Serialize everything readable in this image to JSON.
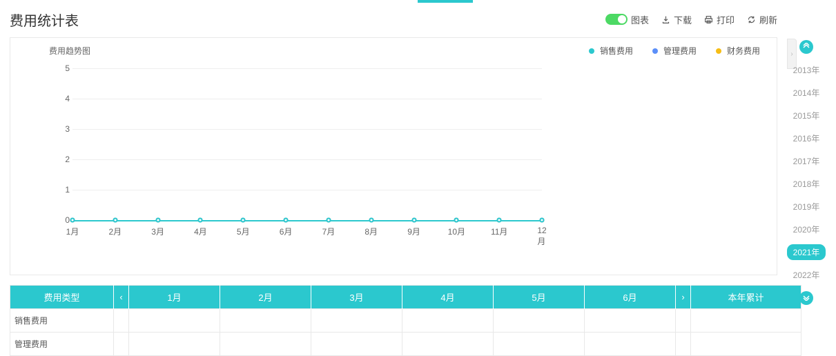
{
  "page": {
    "title": "费用统计表"
  },
  "tools": {
    "chart_toggle_label": "图表",
    "download_label": "下载",
    "print_label": "打印",
    "refresh_label": "刷新"
  },
  "chart": {
    "title": "费用趋势图",
    "type": "line",
    "xlabels": [
      "1月",
      "2月",
      "3月",
      "4月",
      "5月",
      "6月",
      "7月",
      "8月",
      "9月",
      "10月",
      "11月",
      "12月"
    ],
    "yticks": [
      0,
      1,
      2,
      3,
      4,
      5
    ],
    "ylim": [
      0,
      5
    ],
    "series": [
      {
        "name": "销售费用",
        "color": "#2bc8ce",
        "values": [
          0,
          0,
          0,
          0,
          0,
          0,
          0,
          0,
          0,
          0,
          0,
          0
        ]
      },
      {
        "name": "管理费用",
        "color": "#5b8ff9",
        "values": [
          0,
          0,
          0,
          0,
          0,
          0,
          0,
          0,
          0,
          0,
          0,
          0
        ]
      },
      {
        "name": "财务费用",
        "color": "#f6bd16",
        "values": [
          0,
          0,
          0,
          0,
          0,
          0,
          0,
          0,
          0,
          0,
          0,
          0
        ]
      }
    ],
    "grid_color": "#eeeeee",
    "background_color": "#ffffff"
  },
  "table": {
    "header_type": "费用类型",
    "months_visible": [
      "1月",
      "2月",
      "3月",
      "4月",
      "5月",
      "6月"
    ],
    "header_total": "本年累计",
    "rows": [
      {
        "label": "销售费用"
      },
      {
        "label": "管理费用"
      }
    ]
  },
  "years": {
    "list": [
      "2013年",
      "2014年",
      "2015年",
      "2016年",
      "2017年",
      "2018年",
      "2019年",
      "2020年",
      "2021年",
      "2022年"
    ],
    "active": "2021年"
  },
  "colors": {
    "accent": "#2bc8ce",
    "border": "#e8e8e8"
  }
}
